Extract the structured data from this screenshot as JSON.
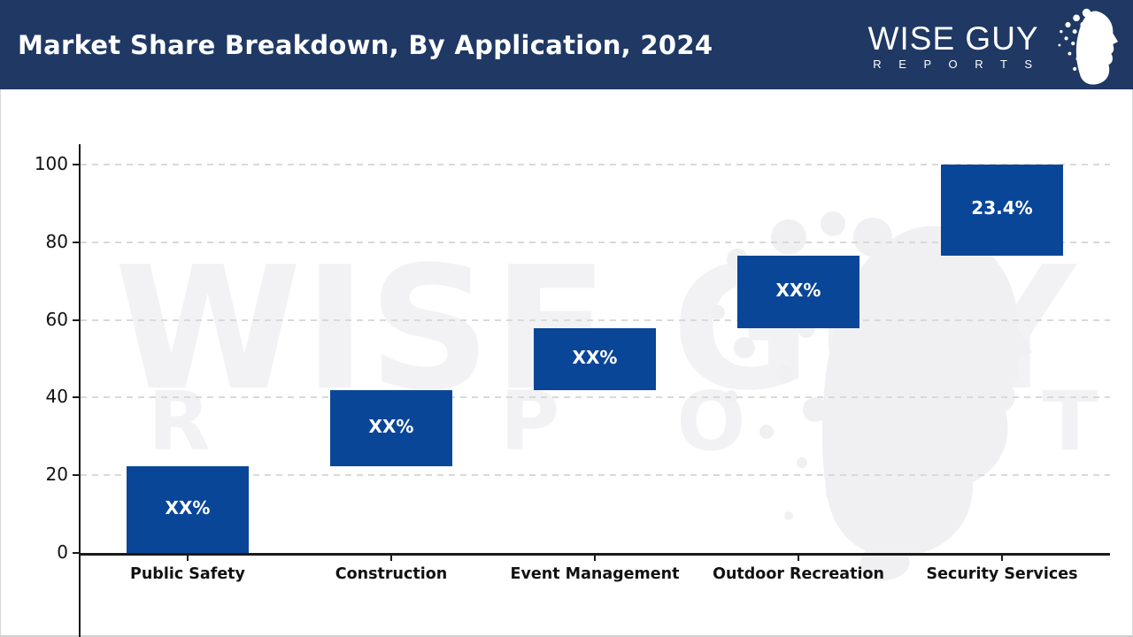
{
  "header": {
    "title": "Market Share Breakdown, By Application, 2024",
    "logo": {
      "line1": "WISE GUY",
      "line2": "R E P O R T S"
    }
  },
  "watermark": {
    "line1": "WISE GUY",
    "line2": "R E P O R T S"
  },
  "chart_data": {
    "type": "bar",
    "subtype": "waterfall",
    "title": "Market Share Breakdown, By Application, 2024",
    "categories": [
      "Public Safety",
      "Construction",
      "Event Management",
      "Outdoor Recreation",
      "Security Services"
    ],
    "segments": [
      {
        "category": "Public Safety",
        "label": "XX%",
        "start": 0,
        "end": 22.3
      },
      {
        "category": "Construction",
        "label": "XX%",
        "start": 22.3,
        "end": 42.0
      },
      {
        "category": "Event Management",
        "label": "XX%",
        "start": 42.0,
        "end": 57.9
      },
      {
        "category": "Outdoor Recreation",
        "label": "XX%",
        "start": 57.9,
        "end": 76.6
      },
      {
        "category": "Security Services",
        "label": "23.4%",
        "start": 76.6,
        "end": 100
      }
    ],
    "y_ticks": [
      0,
      20,
      40,
      60,
      80,
      100
    ],
    "ylim": [
      0,
      105
    ],
    "xlabel": "",
    "ylabel": "",
    "grid": "horizontal-dashed",
    "legend": "none",
    "colors": {
      "bar": "#0a4697",
      "bar_label": "#ffffff",
      "grid": "#d9d9d9",
      "axis": "#1a1a1a",
      "header_bg": "#1f3864",
      "watermark": "#f2f2f4"
    }
  }
}
